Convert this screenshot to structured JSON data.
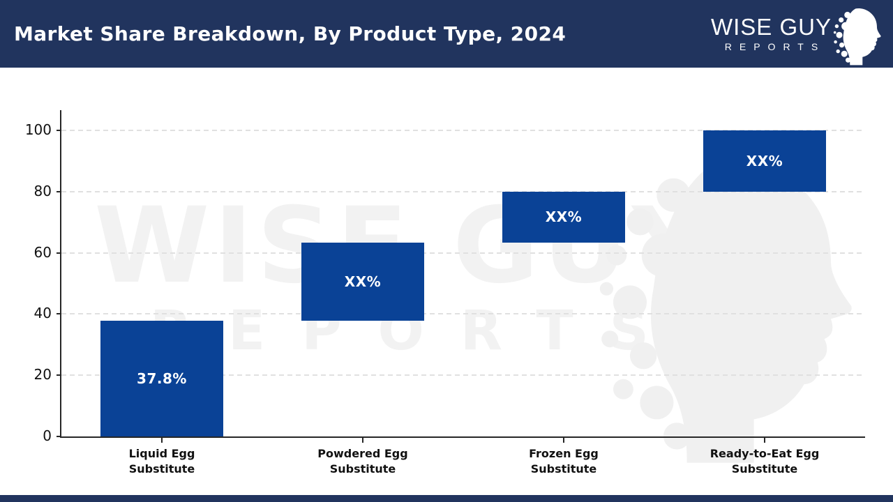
{
  "header": {
    "title": "Market Share Breakdown, By Product Type, 2024",
    "logo": {
      "line1": "WISE GUY",
      "line2": "REPORTS"
    }
  },
  "watermark": {
    "line1": "WISE GUY",
    "line2": "REPORTS"
  },
  "colors": {
    "header_bg": "#21345E",
    "footer_bg": "#21345E",
    "bar": "#0A4296",
    "bar_label": "#ffffff",
    "axis": "#262626",
    "tick_label": "#111111",
    "grid": "#e0e0e0",
    "watermark": "#f2f2f2"
  },
  "chart_data": {
    "type": "bar",
    "subtype": "waterfall",
    "title": "Market Share Breakdown, By Product Type, 2024",
    "xlabel": "",
    "ylabel": "",
    "ylim": [
      0,
      106
    ],
    "yticks": [
      0,
      20,
      40,
      60,
      80,
      100
    ],
    "grid": "horizontal-dashed",
    "legend": "none",
    "categories": [
      "Liquid Egg\nSubstitute",
      "Powdered Egg\nSubstitute",
      "Frozen Egg\nSubstitute",
      "Ready-to-Eat Egg\nSubstitute"
    ],
    "segments": [
      {
        "category": "Liquid Egg Substitute",
        "start": 0,
        "end": 37.8,
        "label": "37.8%"
      },
      {
        "category": "Powdered Egg Substitute",
        "start": 37.8,
        "end": 63.4,
        "label": "XX%"
      },
      {
        "category": "Frozen Egg Substitute",
        "start": 63.4,
        "end": 80,
        "label": "XX%"
      },
      {
        "category": "Ready-to-Eat Egg Substitute",
        "start": 80,
        "end": 100,
        "label": "XX%"
      }
    ]
  }
}
